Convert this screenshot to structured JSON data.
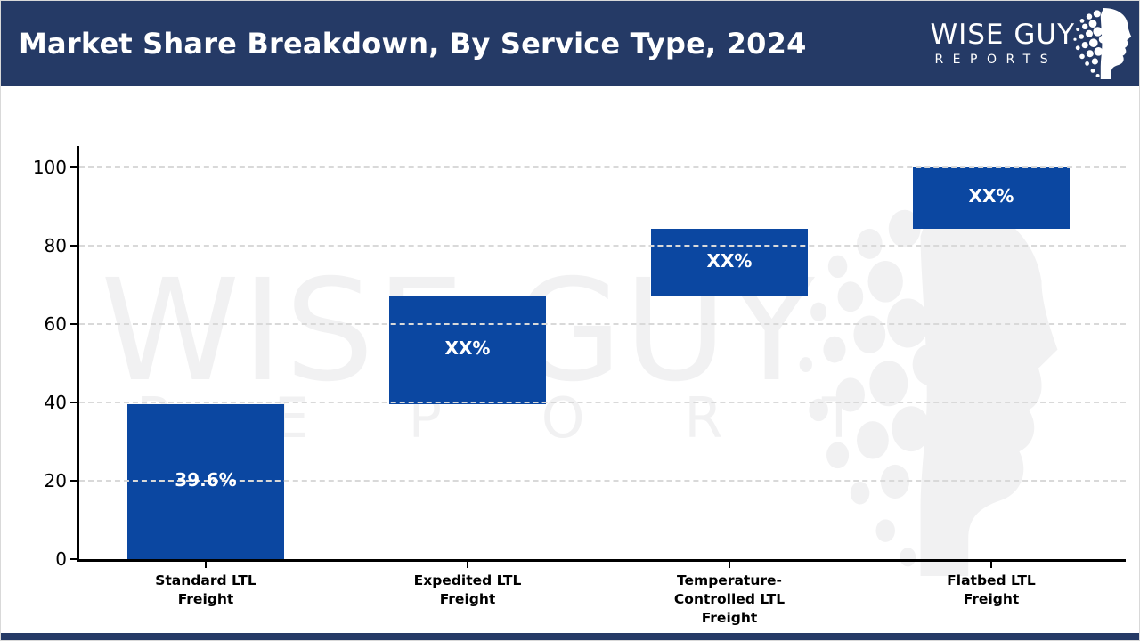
{
  "header": {
    "title": "Market Share Breakdown, By Service Type, 2024",
    "logo": {
      "name": "WISE GUY",
      "sub": "REPORTS"
    }
  },
  "watermark": {
    "line1": "WISE GUY",
    "line2": "R E P O R T S"
  },
  "colors": {
    "header_bg": "#253A66",
    "footer_bg": "#253A66",
    "page_bg": "#FFFFFF",
    "page_border": "#D9D9D9",
    "bar": "#0B47A1",
    "bar_label": "#FFFFFF",
    "grid": "#D9D9D9",
    "axis": "#000000",
    "tick_label": "#000000",
    "category_label": "#000000",
    "title_text": "#FFFFFF",
    "logo_text": "#FFFFFF",
    "watermark": "#F1F1F2"
  },
  "chart_data": {
    "type": "bar",
    "subtype": "waterfall",
    "title": "Market Share Breakdown, By Service Type, 2024",
    "categories": [
      "Standard LTL Freight",
      "Expedited LTL Freight",
      "Temperature-Controlled LTL Freight",
      "Flatbed LTL Freight"
    ],
    "category_label_lines": [
      [
        "Standard LTL",
        "Freight"
      ],
      [
        "Expedited LTL",
        "Freight"
      ],
      [
        "Temperature-",
        "Controlled LTL",
        "Freight"
      ],
      [
        "Flatbed LTL",
        "Freight"
      ]
    ],
    "segments": [
      {
        "category": "Standard LTL Freight",
        "start": 0,
        "end": 39.6,
        "label": "39.6%"
      },
      {
        "category": "Expedited LTL Freight",
        "start": 39.6,
        "end": 67.0,
        "label": "XX%"
      },
      {
        "category": "Temperature-Controlled LTL Freight",
        "start": 67.0,
        "end": 84.4,
        "label": "XX%"
      },
      {
        "category": "Flatbed LTL Freight",
        "start": 84.4,
        "end": 100.0,
        "label": "XX%"
      }
    ],
    "xlabel": "",
    "ylabel": "",
    "ylim": [
      0,
      100
    ],
    "yticks": [
      0,
      20,
      40,
      60,
      80,
      100
    ],
    "grid": "horizontal-dashed",
    "legend": "none"
  }
}
